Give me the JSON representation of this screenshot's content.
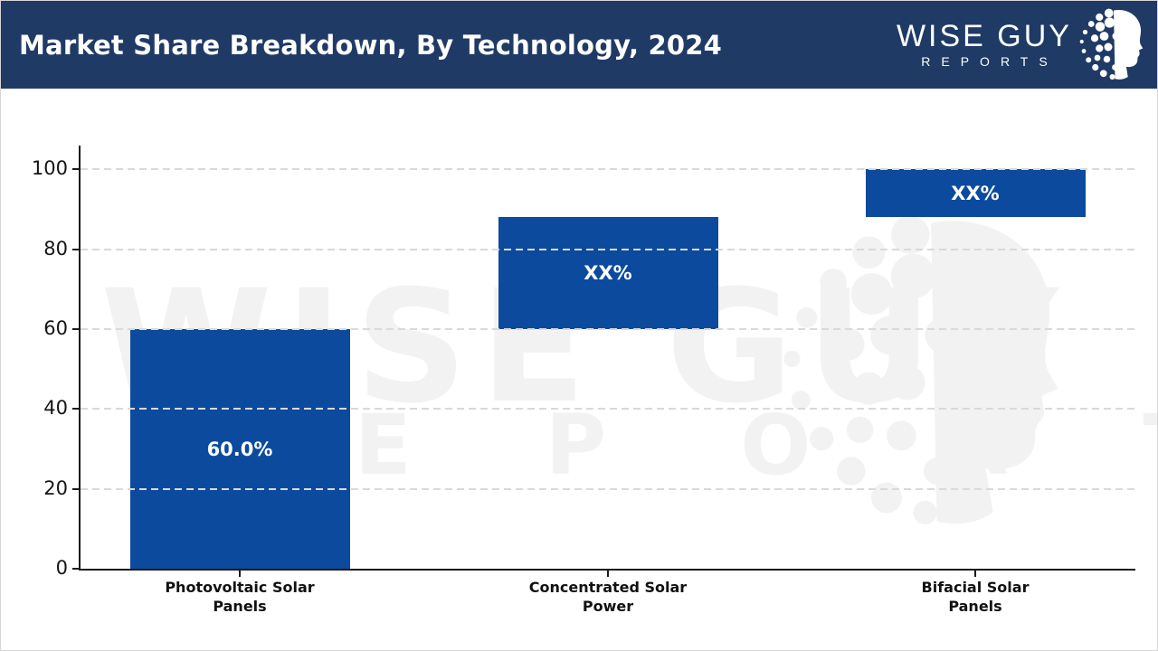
{
  "header": {
    "title": "Market Share Breakdown, By Technology, 2024",
    "bg_color": "#203a66",
    "logo": {
      "line1": "WISE GUY",
      "line2": "REPORTS"
    }
  },
  "watermark": {
    "line1": "WISE GUY",
    "line2": "R E P O R T S"
  },
  "chart_data": {
    "type": "bar",
    "subtype": "waterfall",
    "title": "Market Share Breakdown, By Technology, 2024",
    "categories": [
      [
        "Photovoltaic Solar",
        "Panels"
      ],
      [
        "Concentrated Solar",
        "Power"
      ],
      [
        "Bifacial Solar",
        "Panels"
      ]
    ],
    "segments": [
      {
        "category": "Photovoltaic Solar Panels",
        "start": 0,
        "end": 60,
        "label": "60.0%"
      },
      {
        "category": "Concentrated Solar Power",
        "start": 60,
        "end": 88,
        "label": "XX%"
      },
      {
        "category": "Bifacial Solar Panels",
        "start": 88,
        "end": 100,
        "label": "XX%"
      }
    ],
    "bar_color": "#0c4a9e",
    "yticks": [
      0,
      20,
      40,
      60,
      80,
      100
    ],
    "ylim": [
      0,
      105
    ],
    "grid": "dashed horizontal, drawn above bars",
    "legend": "none",
    "xlabel": "",
    "ylabel": ""
  }
}
